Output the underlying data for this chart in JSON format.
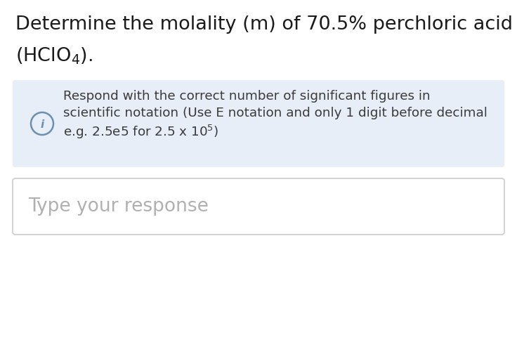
{
  "title_line1": "Determine the molality (m) of 70.5% perchloric acid",
  "title_line2": "(HClO$_4$).",
  "info_line1": "Respond with the correct number of significant figures in",
  "info_line2": "scientific notation (Use E notation and only 1 digit before decimal",
  "info_line3": "e.g. 2.5e5 for 2.5 x 10$^5$)",
  "placeholder": "Type your response",
  "bg_color": "#ffffff",
  "title_color": "#1a1a1a",
  "info_bg_color": "#e8eef7",
  "info_text_color": "#3a3a3a",
  "icon_color": "#6a8faf",
  "input_border_color": "#cccccc",
  "input_text_color": "#b0b0b0",
  "title_fontsize": 19.5,
  "info_fontsize": 13.2,
  "placeholder_fontsize": 19
}
